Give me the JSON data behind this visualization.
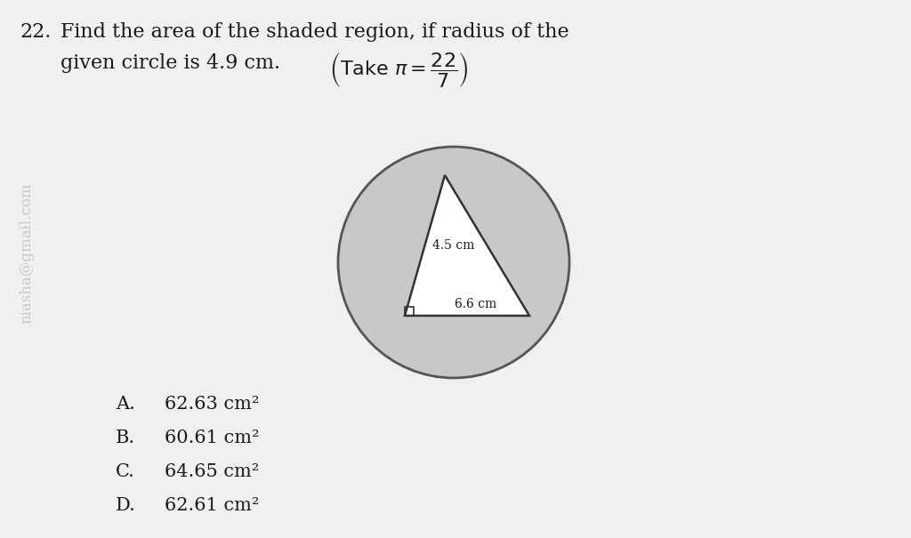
{
  "bg_color": "#f0f0ee",
  "question_number": "22.",
  "question_text_line1": "Find the area of the shaded region, if radius of the",
  "question_text_line2": "given circle is 4.9 cm.",
  "circle_color": "#c8c8c8",
  "circle_edge_color": "#555555",
  "triangle_fill": "#ffffff",
  "triangle_edge_color": "#333333",
  "label_45cm": "4.5 cm",
  "label_66cm": "6.6 cm",
  "options": [
    {
      "letter": "A.",
      "value": "62.63 cm²"
    },
    {
      "letter": "B.",
      "value": "60.61 cm²"
    },
    {
      "letter": "C.",
      "value": "64.65 cm²"
    },
    {
      "letter": "D.",
      "value": "62.61 cm²"
    }
  ],
  "watermark_text": "niasha@gmail.com",
  "text_color": "#1a1a1a",
  "font_size_question": 16,
  "font_size_options": 15,
  "font_size_label": 10
}
